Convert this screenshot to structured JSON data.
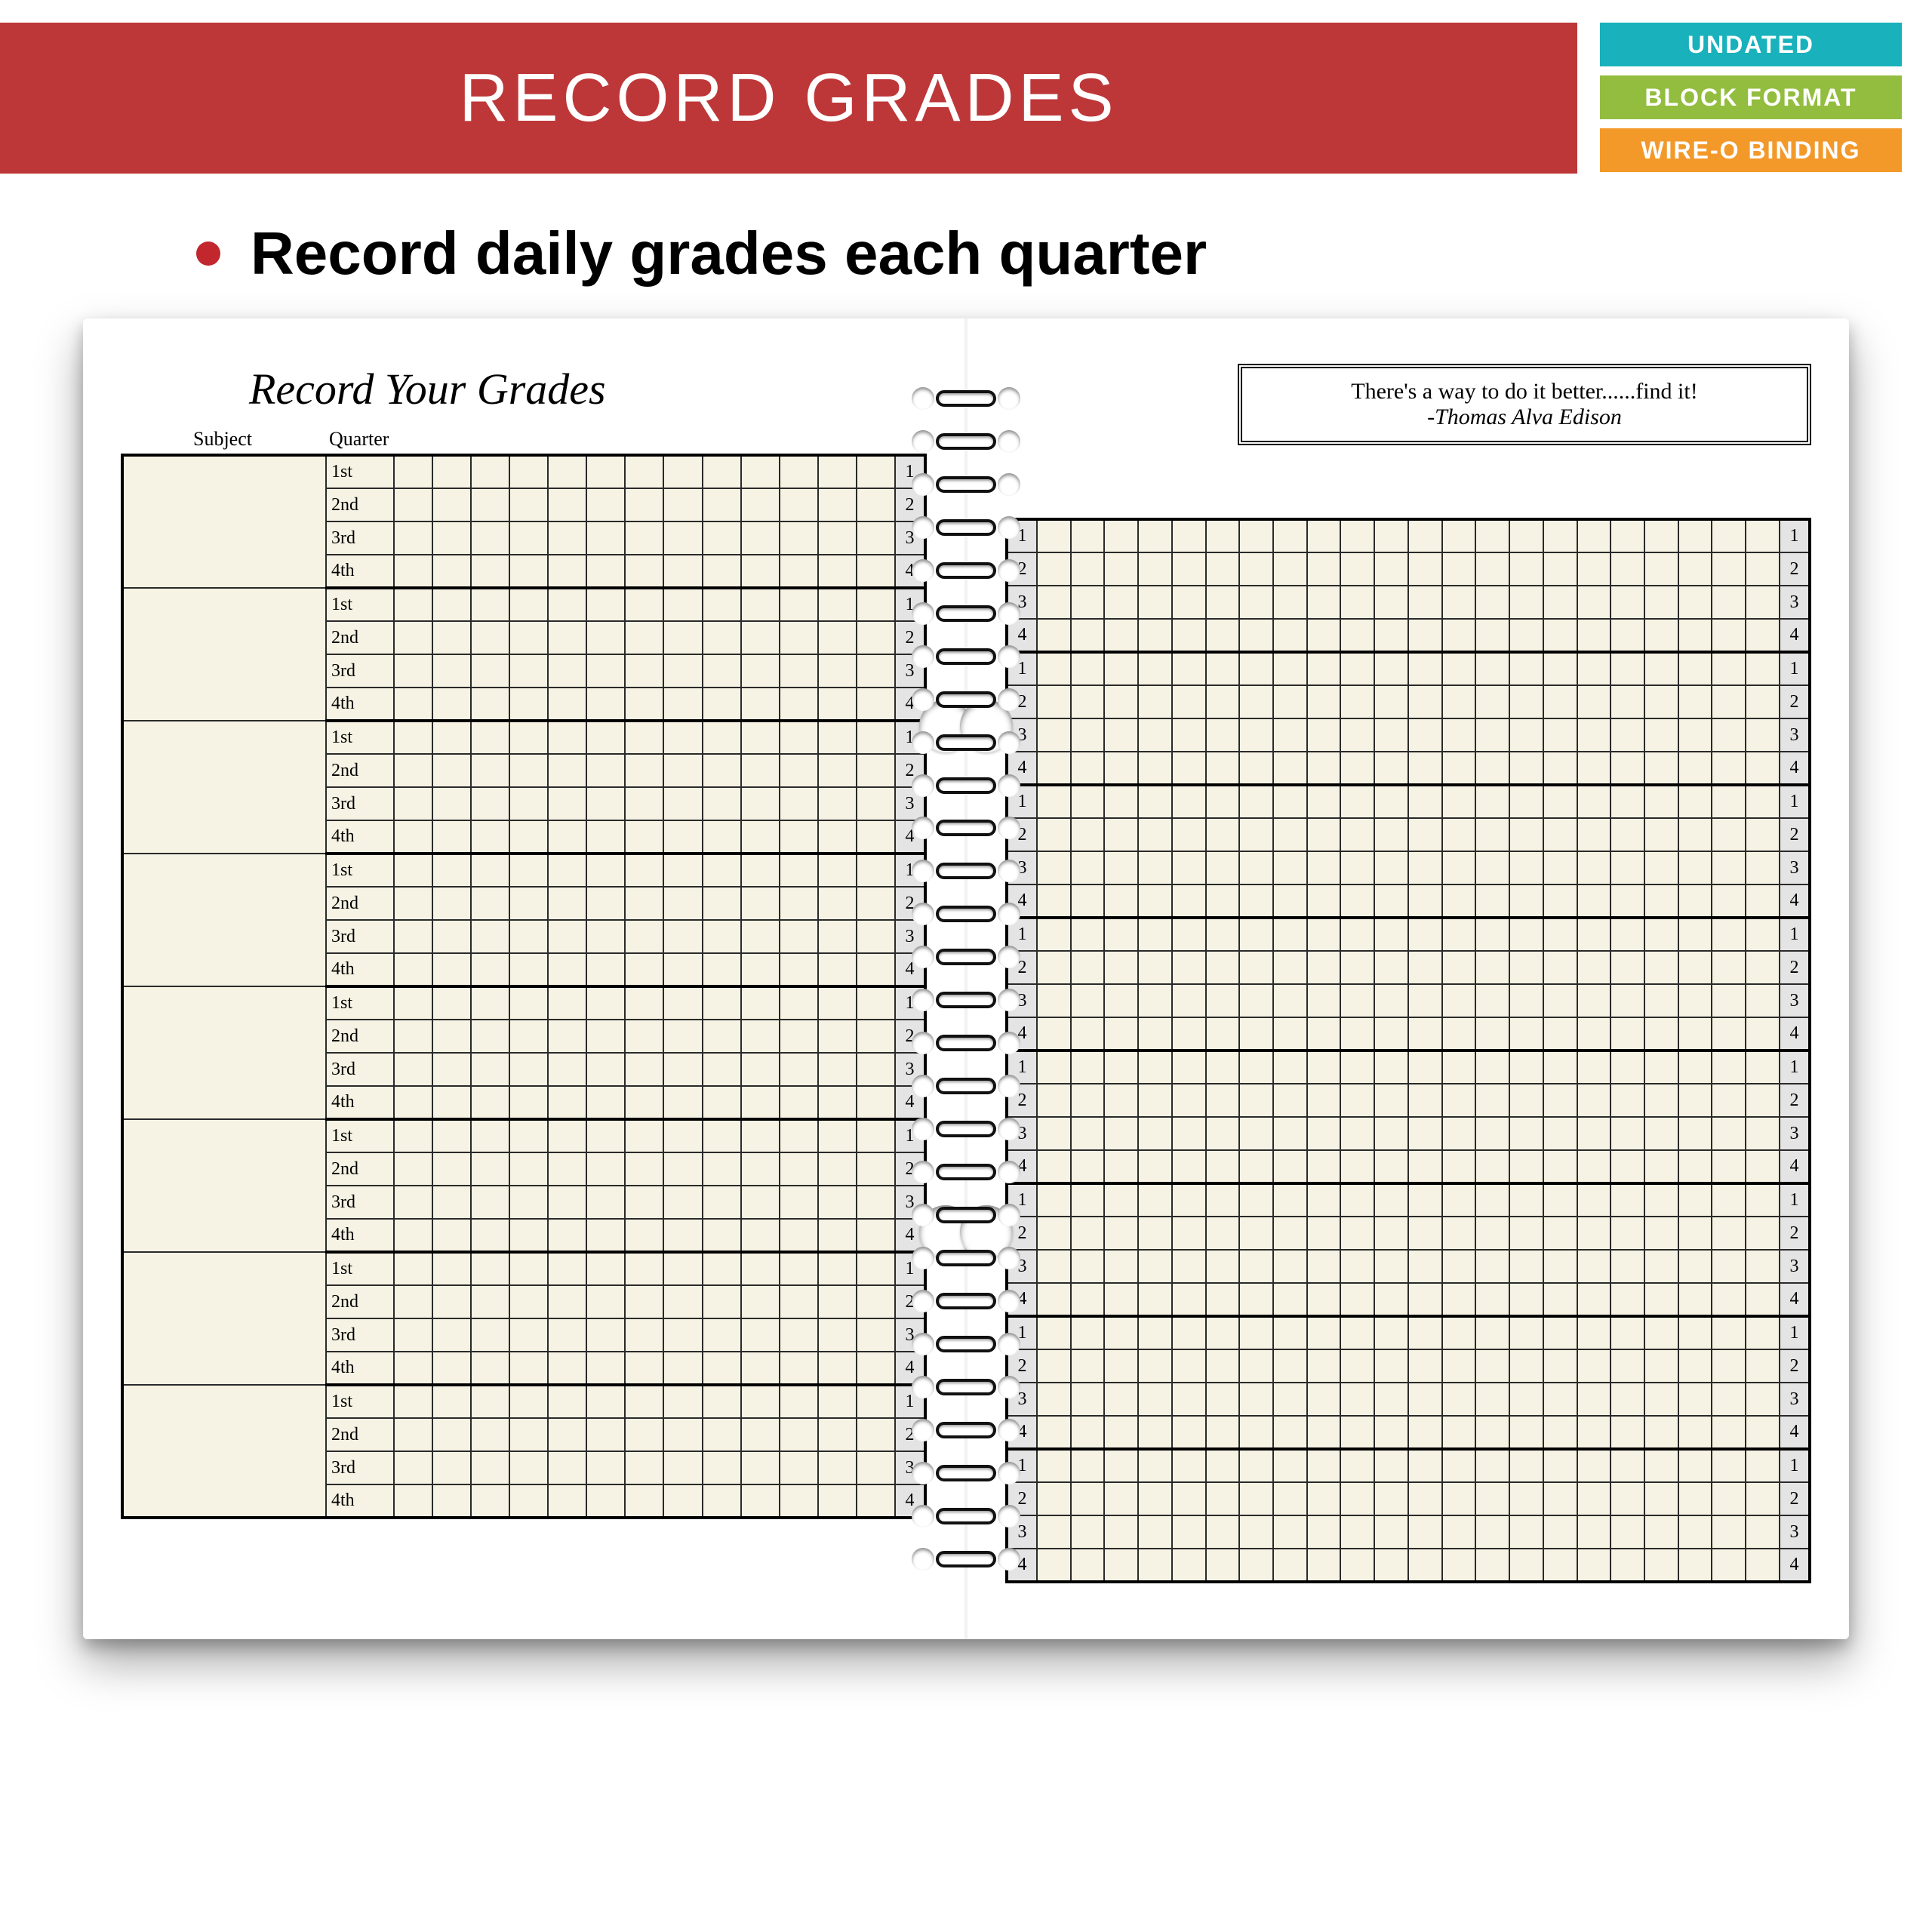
{
  "header": {
    "banner_text": "RECORD GRADES",
    "banner_bg": "#be3738",
    "badges": [
      {
        "label": "UNDATED",
        "bg": "#18b1bc"
      },
      {
        "label": "BLOCK FORMAT",
        "bg": "#93bd3f"
      },
      {
        "label": "WIRE-O BINDING",
        "bg": "#f3992a"
      }
    ]
  },
  "bullet": {
    "dot_color": "#c1272d",
    "text": "Record daily grades each quarter"
  },
  "left_page": {
    "title": "Record Your Grades",
    "subject_heading": "Subject",
    "quarter_heading": "Quarter",
    "quarter_labels": [
      "1st",
      "2nd",
      "3rd",
      "4th"
    ],
    "row_numbers": [
      "1",
      "2",
      "3",
      "4"
    ],
    "blocks": 8,
    "grid_columns": 13,
    "cell_bg": "#f6f3e4",
    "num_bg": "#e4e4e4"
  },
  "right_page": {
    "quote": "There's a way to do it better......find it!",
    "quote_author": "-Thomas Alva Edison",
    "row_numbers": [
      "1",
      "2",
      "3",
      "4"
    ],
    "blocks": 8,
    "grid_columns": 22,
    "cell_bg": "#f6f3e4",
    "num_bg": "#e4e4e4"
  },
  "spiral_coils": 28
}
